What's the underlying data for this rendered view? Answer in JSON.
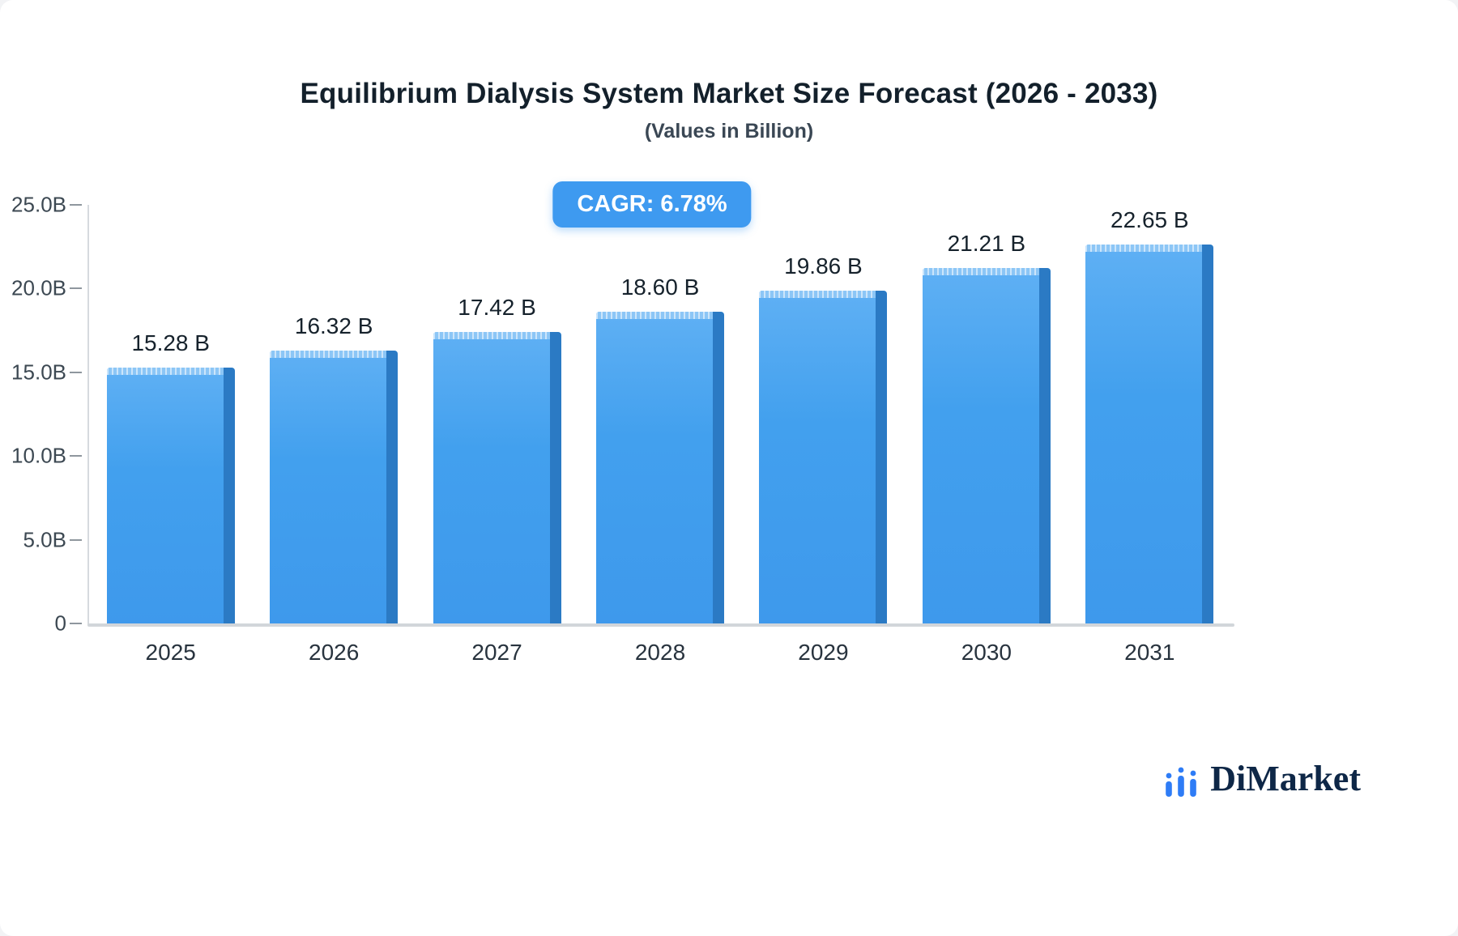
{
  "chart_data": {
    "type": "bar",
    "title": "Equilibrium Dialysis System Market Size Forecast (2026 - 2033)",
    "subtitle": "(Values in Billion)",
    "cagr_label": "CAGR: 6.78%",
    "categories": [
      "2025",
      "2026",
      "2027",
      "2028",
      "2029",
      "2030",
      "2031"
    ],
    "values": [
      15.28,
      16.32,
      17.42,
      18.6,
      19.86,
      21.21,
      22.65
    ],
    "value_labels": [
      "15.28 B",
      "16.32 B",
      "17.42 B",
      "18.60 B",
      "19.86 B",
      "21.21 B",
      "22.65 B"
    ],
    "xlabel": "",
    "ylabel": "",
    "ylim": [
      0,
      25
    ],
    "ytick_values": [
      0,
      5,
      10,
      15,
      20,
      25
    ],
    "ytick_labels": [
      "0",
      "5.0B",
      "10.0B",
      "15.0B",
      "20.0B",
      "25.0B"
    ],
    "grid": false,
    "legend": false,
    "colors": {
      "bar_face": "#42a0ee",
      "bar_side": "#2b7ac4",
      "bar_top": "#8cc6f6",
      "badge_bg": "#3e9af0",
      "badge_text": "#ffffff",
      "axis": "#d2d6da",
      "label_text": "#16222c"
    }
  },
  "brand": {
    "name": "DiMarket",
    "icon": "bar-chart-dots-icon",
    "icon_color": "#2e7cf6",
    "text_color": "#0e2747"
  }
}
